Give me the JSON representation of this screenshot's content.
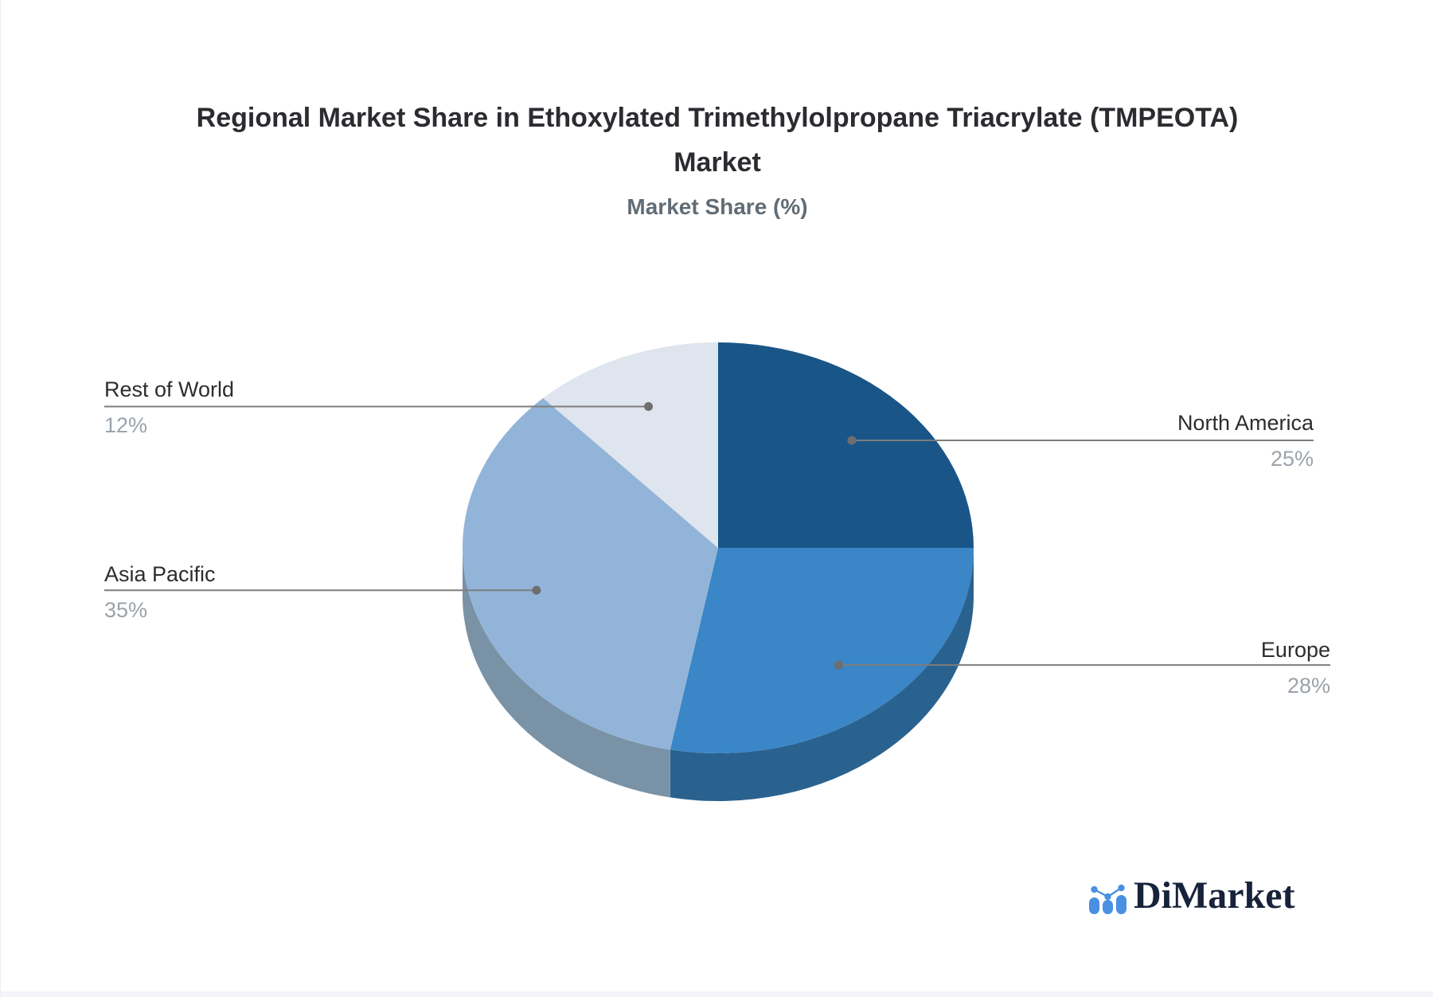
{
  "title": {
    "line1": "Regional Market Share in Ethoxylated Trimethylolpropane Triacrylate (TMPEOTA)",
    "line2": "Market"
  },
  "subtitle": "Market Share (%)",
  "chart_data": {
    "type": "pie",
    "title": "Regional Market Share in Ethoxylated Trimethylolpropane Triacrylate (TMPEOTA) Market",
    "subtitle": "Market Share (%)",
    "categories": [
      "North America",
      "Europe",
      "Asia Pacific",
      "Rest of World"
    ],
    "values": [
      25,
      28,
      35,
      12
    ],
    "unit": "%",
    "colors": [
      "#1A5588",
      "#3A86C6",
      "#92B4D9",
      "#DFE5EE"
    ],
    "side_colors": [
      "",
      "#2A628F",
      "#7A92A6",
      ""
    ],
    "style": "3d-pie",
    "start_angle": "12-o-clock",
    "direction": "clockwise",
    "legend": "none",
    "leader_line_color": "#7d7d7d",
    "label_color": "#2d2d2d",
    "percent_label_color": "#9aa3ab"
  },
  "labels": {
    "north_america": {
      "name": "North America",
      "value": "25%"
    },
    "europe": {
      "name": "Europe",
      "value": "28%"
    },
    "asia_pacific": {
      "name": "Asia Pacific",
      "value": "35%"
    },
    "rest_of_world": {
      "name": "Rest of World",
      "value": "12%"
    }
  },
  "brand": {
    "name": "DiMarket",
    "icon": "bar-chart-logo-icon",
    "icon_color": "#4a90e2",
    "text_color": "#17233b"
  }
}
